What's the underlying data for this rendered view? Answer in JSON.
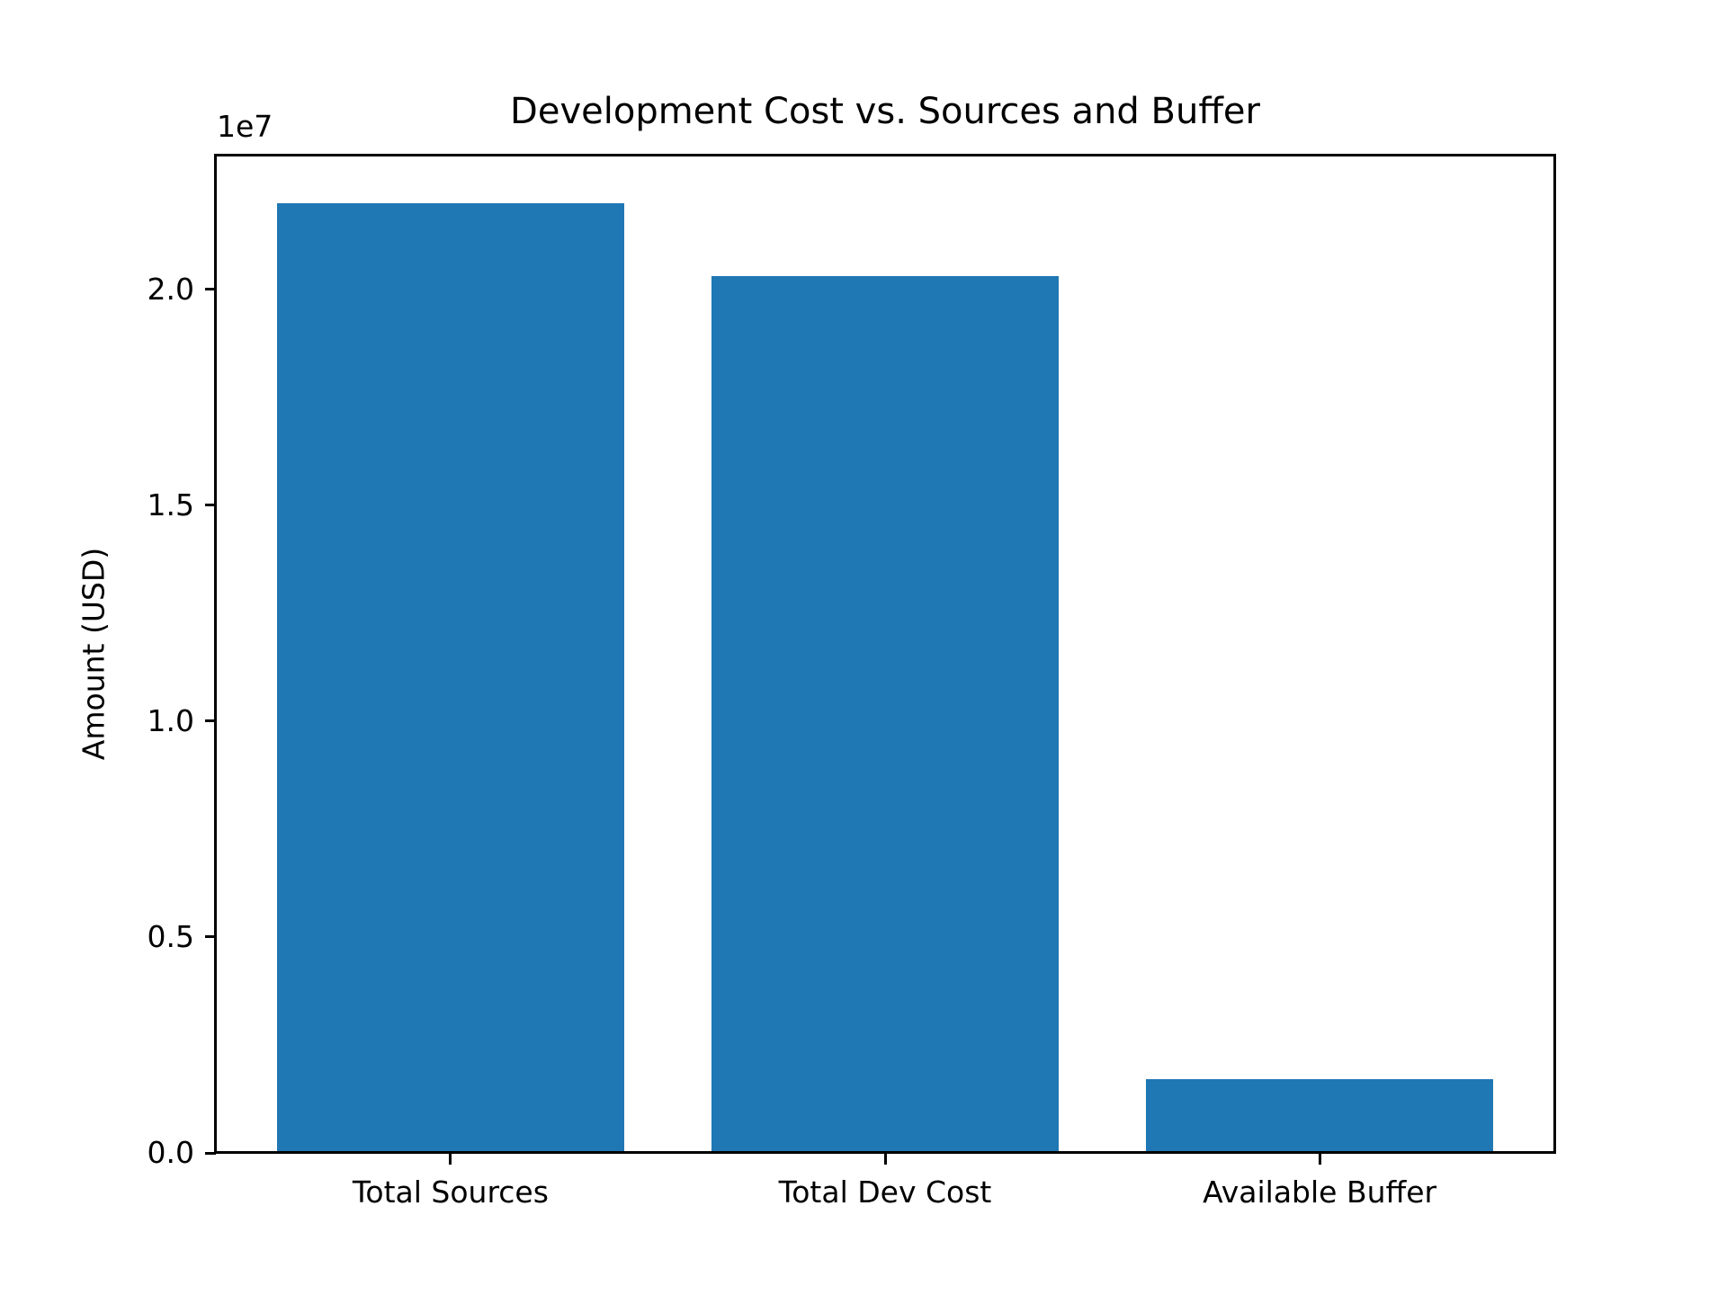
{
  "chart_data": {
    "type": "bar",
    "title": "Development Cost vs. Sources and Buffer",
    "xlabel": "",
    "ylabel": "Amount (USD)",
    "offset_text": "1e7",
    "categories": [
      "Total Sources",
      "Total Dev Cost",
      "Available Buffer"
    ],
    "values": [
      22000000,
      20300000,
      1700000
    ],
    "ylim": [
      0,
      23100000
    ],
    "yticks": [
      {
        "value": 0,
        "label": "0.0"
      },
      {
        "value": 5000000,
        "label": "0.5"
      },
      {
        "value": 10000000,
        "label": "1.0"
      },
      {
        "value": 15000000,
        "label": "1.5"
      },
      {
        "value": 20000000,
        "label": "2.0"
      }
    ],
    "bar_color": "#1f77b4",
    "grid": false,
    "legend": null
  }
}
